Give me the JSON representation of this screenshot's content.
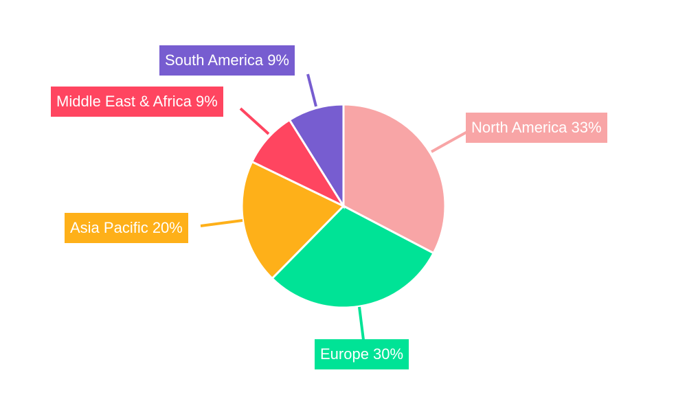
{
  "chart_data": {
    "type": "pie",
    "title": "",
    "categories": [
      "North America",
      "Europe",
      "Asia Pacific",
      "Middle East & Africa",
      "South America"
    ],
    "values": [
      33,
      30,
      20,
      9,
      9
    ],
    "colors": [
      "#f8a5a6",
      "#00e396",
      "#feb019",
      "#ff4560",
      "#775dd0"
    ],
    "labels": [
      "North America 33%",
      "Europe 30%",
      "Asia Pacific 20%",
      "Middle East & Africa 9%",
      "South America 9%"
    ],
    "start_angle_deg": 0,
    "direction": "clockwise",
    "legend": "none",
    "data_labels": "outside-callout-boxes"
  },
  "labels": {
    "north_america": "North America 33%",
    "europe": "Europe 30%",
    "asia_pacific": "Asia Pacific 20%",
    "middle_east_africa": "Middle East & Africa 9%",
    "south_america": "South America 9%"
  }
}
